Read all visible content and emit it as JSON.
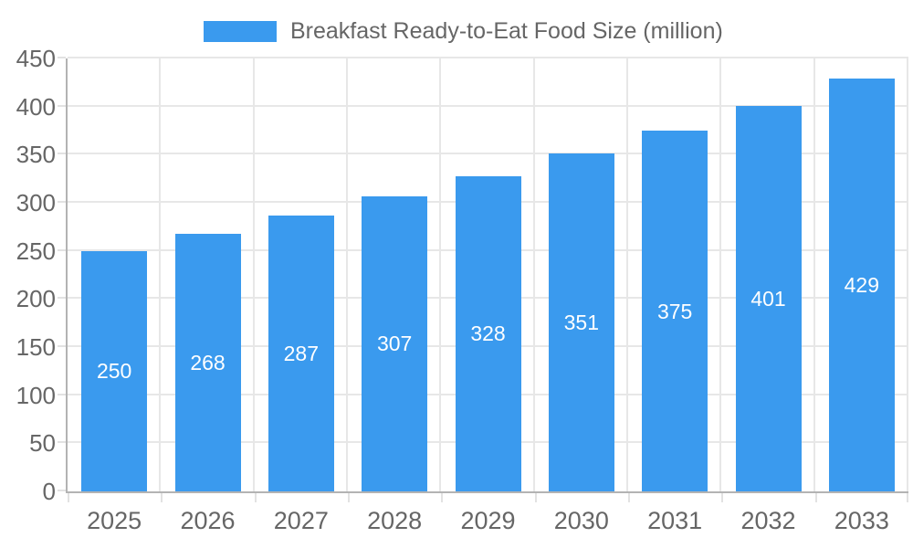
{
  "legend": {
    "label": "Breakfast Ready-to-Eat Food Size (million)"
  },
  "chart_data": {
    "type": "bar",
    "title": "Breakfast Ready-to-Eat Food Size (million)",
    "categories": [
      "2025",
      "2026",
      "2027",
      "2028",
      "2029",
      "2030",
      "2031",
      "2032",
      "2033"
    ],
    "values": [
      250,
      268,
      287,
      307,
      328,
      351,
      375,
      401,
      429
    ],
    "xlabel": "",
    "ylabel": "",
    "ylim": [
      0,
      450
    ],
    "ytick_step": 50,
    "grid": true,
    "legend_position": "top",
    "colors": {
      "bar": "#3A9AEE",
      "bar_value_text": "#ffffff",
      "axis_text": "#666666",
      "legend_text": "#666666",
      "gridline": "#e7e7e7",
      "tick": "#e2e2e2",
      "axis_line": "#b3b3b3"
    }
  }
}
